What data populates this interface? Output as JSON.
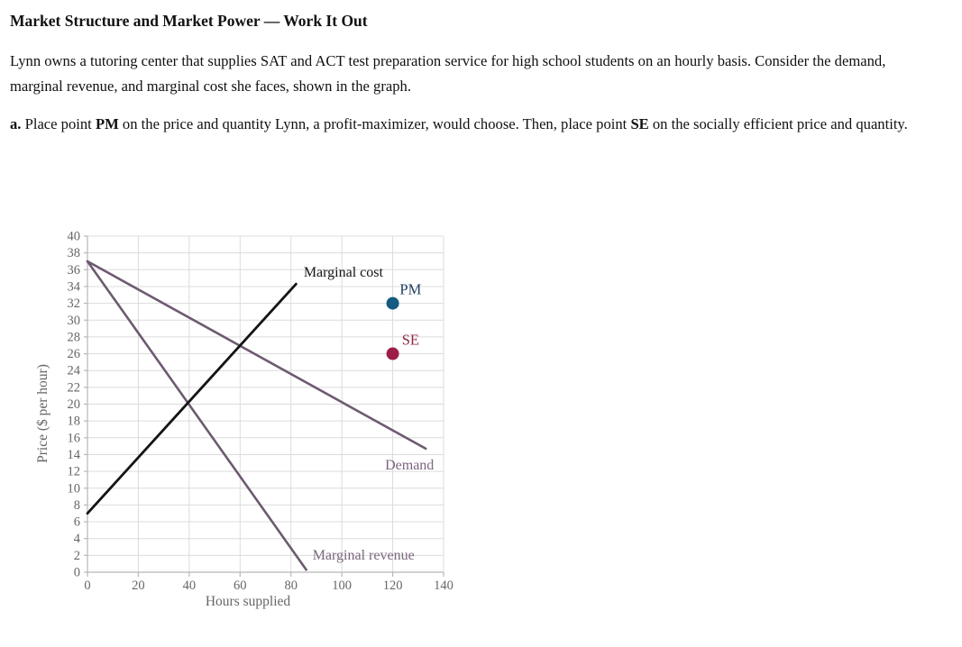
{
  "header": {
    "title": "Market Structure and Market Power — Work It Out"
  },
  "intro": {
    "text": "Lynn owns a tutoring center that supplies SAT and ACT test preparation service for high school students on an hourly basis. Consider the demand, marginal revenue, and marginal cost she faces, shown in the graph."
  },
  "part_a": {
    "segments": [
      {
        "text": "a.",
        "bold": true
      },
      {
        "text": " Place point ",
        "bold": false
      },
      {
        "text": "PM",
        "bold": true
      },
      {
        "text": " on the price and quantity Lynn, a profit-maximizer, would choose. Then, place point ",
        "bold": false
      },
      {
        "text": "SE",
        "bold": true
      },
      {
        "text": " on the socially efficient price and quantity.",
        "bold": false
      }
    ]
  },
  "chart_data": {
    "type": "line",
    "title": "",
    "xlabel": "Hours supplied",
    "ylabel": "Price ($ per hour)",
    "xlim": [
      0,
      140
    ],
    "ylim": [
      0,
      40
    ],
    "x_tick_step": 20,
    "y_tick_step": 2,
    "grid": true,
    "legend_position": "inline-labels",
    "colors": {
      "grid": "#dcdcdc",
      "axis": "#b7b7b7",
      "tick_text": "#666666"
    },
    "series": [
      {
        "name": "Demand",
        "color": "#6d5a70",
        "width": 2.6,
        "points": [
          [
            0,
            37
          ],
          [
            133,
            14.7
          ]
        ],
        "label": {
          "text": "Demand",
          "x": 117,
          "y": 12.2,
          "anchor": "start",
          "color": "#7b657f"
        }
      },
      {
        "name": "Marginal revenue",
        "color": "#6d5a70",
        "width": 2.6,
        "points": [
          [
            0,
            37
          ],
          [
            86,
            0.3
          ]
        ],
        "label": {
          "text": "Marginal revenue",
          "x": 88.5,
          "y": 1.5,
          "anchor": "start",
          "color": "#7b657f"
        }
      },
      {
        "name": "Marginal cost",
        "color": "#141414",
        "width": 2.8,
        "points": [
          [
            0,
            7
          ],
          [
            82,
            34.3
          ]
        ],
        "label": {
          "text": "Marginal cost",
          "x": 85,
          "y": 35.2,
          "anchor": "start",
          "color": "#141414"
        }
      }
    ],
    "points": [
      {
        "name": "PM",
        "x": 120,
        "y": 32,
        "dot_color": "#155a81",
        "label": {
          "text": "PM",
          "x": 127,
          "y": 33.1,
          "color": "#1f3e60"
        }
      },
      {
        "name": "SE",
        "x": 120,
        "y": 26,
        "dot_color": "#9d1d49",
        "label": {
          "text": "SE",
          "x": 127,
          "y": 27.1,
          "color": "#8d2a45"
        }
      }
    ]
  }
}
